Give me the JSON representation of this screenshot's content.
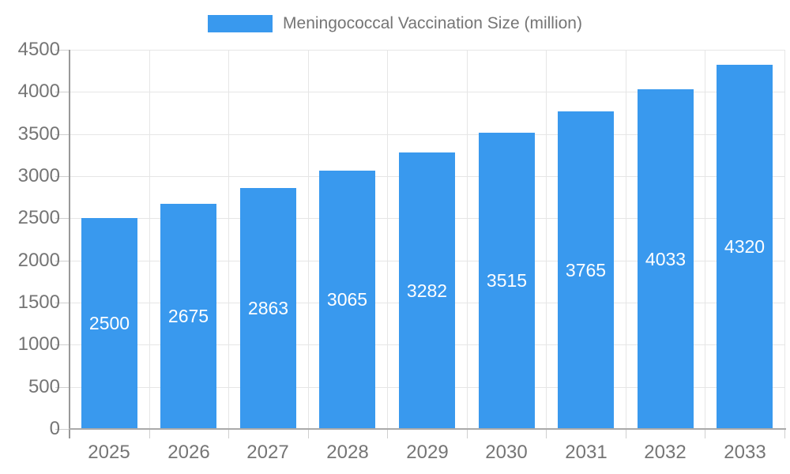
{
  "chart_data": {
    "type": "bar",
    "title": "Meningococcal Vaccination Size (million)",
    "legend": [
      "Meningococcal Vaccination Size (million)"
    ],
    "legend_position": "top-center",
    "categories": [
      "2025",
      "2026",
      "2027",
      "2028",
      "2029",
      "2030",
      "2031",
      "2032",
      "2033"
    ],
    "values": [
      2500,
      2675,
      2863,
      3065,
      3282,
      3515,
      3765,
      4033,
      4320
    ],
    "bar_labels": [
      "2500",
      "2675",
      "2863",
      "3065",
      "3282",
      "3515",
      "3765",
      "4033",
      "4320"
    ],
    "xlabel": "",
    "ylabel": "",
    "ylim": [
      0,
      4500
    ],
    "ytick_step": 500,
    "yticks": [
      0,
      500,
      1000,
      1500,
      2000,
      2500,
      3000,
      3500,
      4000,
      4500
    ],
    "grid": true
  },
  "colors": {
    "bar": "#3999EE",
    "grid": "#e6e6e6",
    "x_axis": "#aaaaaa",
    "y_axis": "#999999",
    "tick": "#cfcfcf",
    "axis_label": "#757575",
    "bar_label": "#ffffff",
    "background": "#ffffff"
  }
}
